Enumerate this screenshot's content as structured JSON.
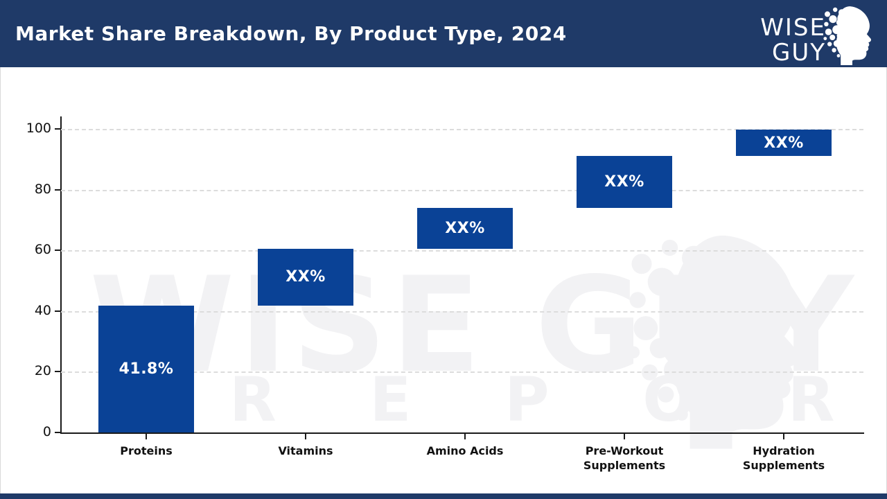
{
  "header": {
    "title": "Market Share Breakdown, By Product Type, 2024",
    "logo": {
      "brand_line1": "WISE GUY",
      "brand_line2": "R E P O R T S"
    }
  },
  "watermark": {
    "line1": "WISE GUY",
    "line2": "R E P O R T S"
  },
  "colors": {
    "header_bg": "#1f3a68",
    "bar_fill": "#0a4296",
    "bar_label": "#ffffff",
    "grid_line": "#dcdcdc",
    "axis_line": "#1a1a1a",
    "tick_label": "#111111",
    "watermark": "#f2f2f4"
  },
  "chart_data": {
    "type": "bar",
    "subtype": "waterfall",
    "title": "Market Share Breakdown, By Product Type, 2024",
    "categories": [
      "Proteins",
      "Vitamins",
      "Amino Acids",
      "Pre-Workout Supplements",
      "Hydration Supplements"
    ],
    "categories_lines": [
      {
        "line1": "Proteins",
        "line2": ""
      },
      {
        "line1": "Vitamins",
        "line2": ""
      },
      {
        "line1": "Amino Acids",
        "line2": ""
      },
      {
        "line1": "Pre-Workout",
        "line2": "Supplements"
      },
      {
        "line1": "Hydration",
        "line2": "Supplements"
      }
    ],
    "segments": [
      {
        "category": "Proteins",
        "start": 0,
        "end": 41.8,
        "label": "41.8%"
      },
      {
        "category": "Vitamins",
        "start": 41.8,
        "end": 60.6,
        "label": "XX%"
      },
      {
        "category": "Amino Acids",
        "start": 60.6,
        "end": 74.0,
        "label": "XX%"
      },
      {
        "category": "Pre-Workout Supplements",
        "start": 74.0,
        "end": 91.0,
        "label": "XX%"
      },
      {
        "category": "Hydration Supplements",
        "start": 91.0,
        "end": 99.8,
        "label": "XX%"
      }
    ],
    "yticks": [
      0,
      20,
      40,
      60,
      80,
      100
    ],
    "ylim": [
      0,
      100
    ],
    "grid": "horizontal-dashed",
    "legend": "none",
    "xlabel": "",
    "ylabel": ""
  }
}
